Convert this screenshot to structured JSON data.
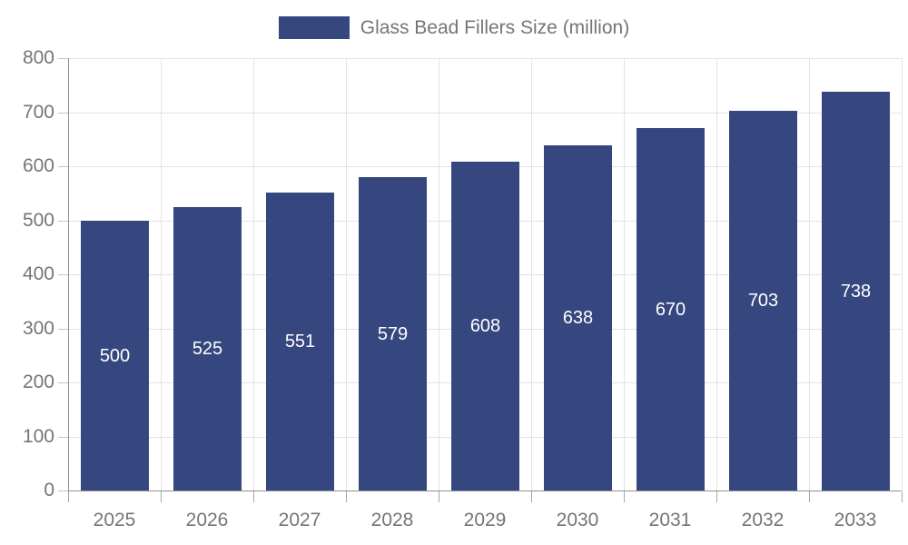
{
  "legend": {
    "label": "Glass Bead Fillers Size (million)"
  },
  "chart_data": {
    "type": "bar",
    "title": "Glass Bead Fillers Size (million)",
    "categories": [
      "2025",
      "2026",
      "2027",
      "2028",
      "2029",
      "2030",
      "2031",
      "2032",
      "2033"
    ],
    "values": [
      500,
      525,
      551,
      579,
      608,
      638,
      670,
      703,
      738
    ],
    "xlabel": "",
    "ylabel": "",
    "ylim": [
      0,
      800
    ],
    "yticks": [
      0,
      100,
      200,
      300,
      400,
      500,
      600,
      700,
      800
    ],
    "grid": true,
    "legend_position": "top",
    "bar_color": "#36477F",
    "value_label_color": "#FFFFFF",
    "axis_color": "#909090",
    "grid_color": "#E3E3E8",
    "y_tick_color": "#C4C4C4",
    "x_tick_color": "#A6A6A6",
    "tick_label_color": "#757575"
  }
}
